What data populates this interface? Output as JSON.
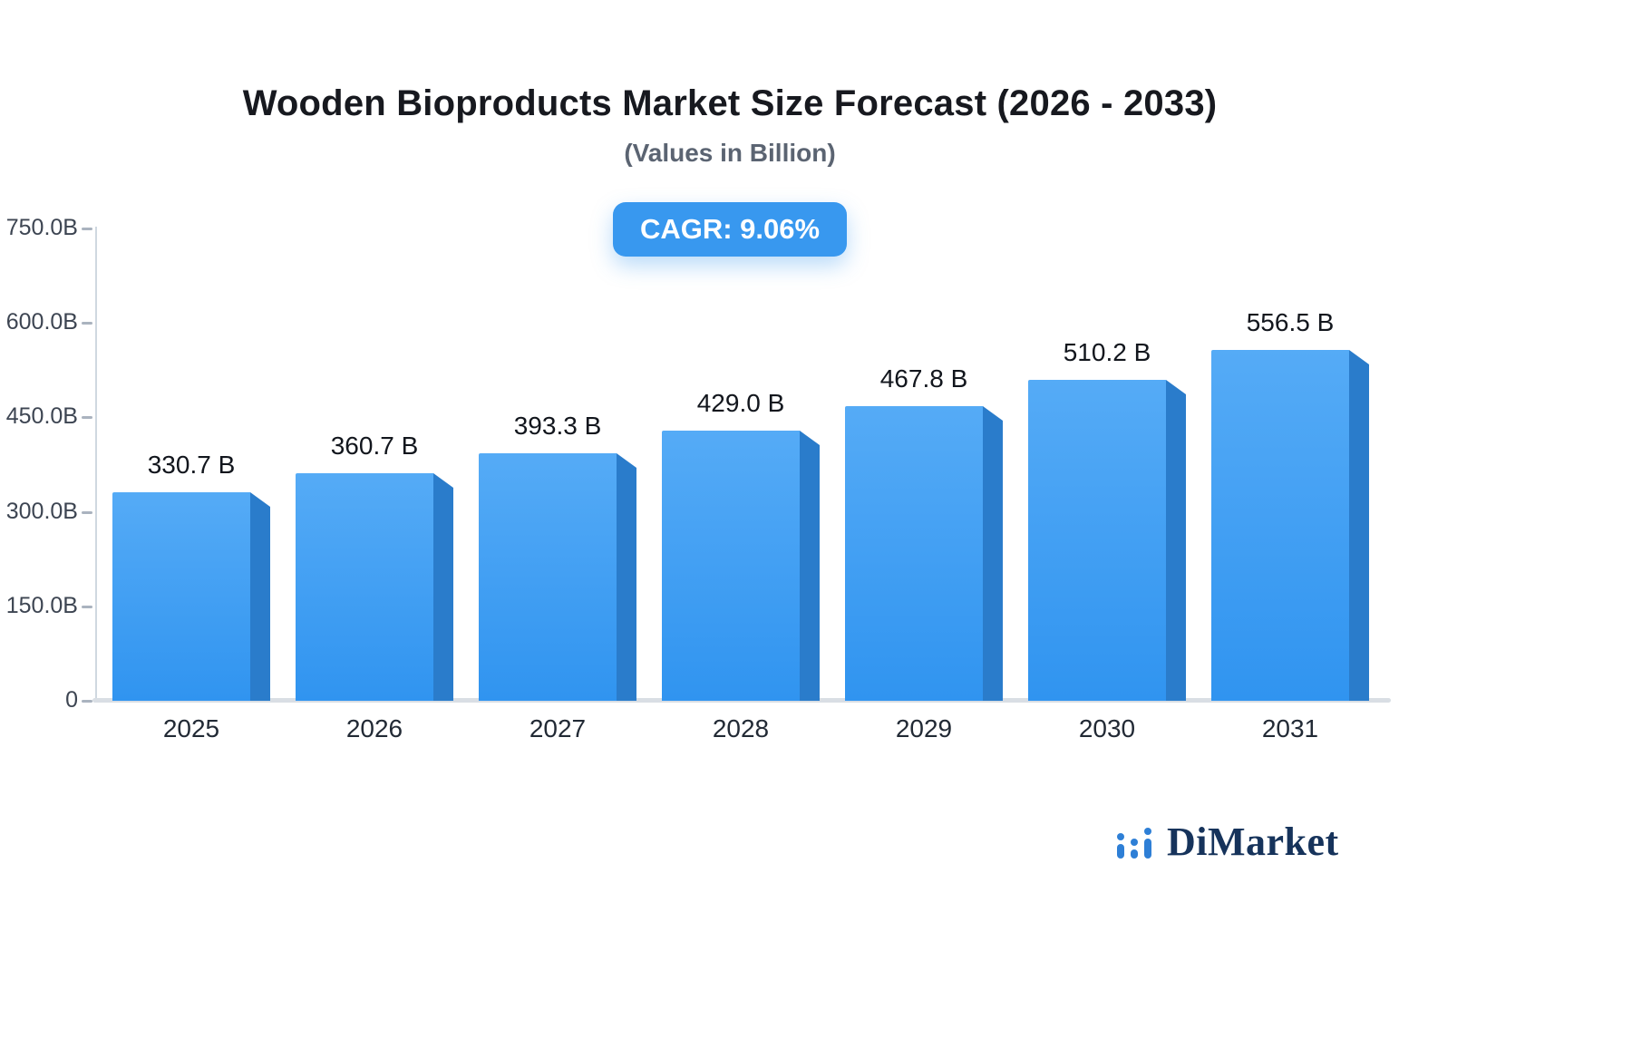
{
  "header": {
    "title": "Wooden Bioproducts Market Size Forecast (2026 - 2033)",
    "subtitle": "(Values in Billion)",
    "badge_label": "CAGR: 9.06%"
  },
  "chart_data": {
    "type": "bar",
    "title": "Wooden Bioproducts Market Size Forecast (2026 - 2033)",
    "subtitle": "(Values in Billion)",
    "categories": [
      "2025",
      "2026",
      "2027",
      "2028",
      "2029",
      "2030",
      "2031"
    ],
    "values": [
      330.7,
      360.7,
      393.3,
      429.0,
      467.8,
      510.2,
      556.5
    ],
    "value_labels": [
      "330.7 B",
      "360.7 B",
      "393.3 B",
      "429.0 B",
      "467.8 B",
      "510.2 B",
      "556.5 B"
    ],
    "xlabel": "",
    "ylabel": "",
    "ylim": [
      0,
      750
    ],
    "ytick_values": [
      750,
      600,
      450,
      300,
      150,
      0
    ],
    "ytick_labels": [
      "750.0B",
      "600.0B",
      "450.0B",
      "300.0B",
      "150.0B",
      "0"
    ],
    "grid": false,
    "legend": false,
    "annotation": "CAGR: 9.06%",
    "bar_face_color": "#3b9bf0",
    "bar_side_color": "#2a7ccb",
    "badge_color": "#3898ef"
  },
  "logo": {
    "text": "DiMarket",
    "icon": "bar-chart-icon",
    "icon_color": "#2e7fd6",
    "text_color": "#16335b"
  }
}
